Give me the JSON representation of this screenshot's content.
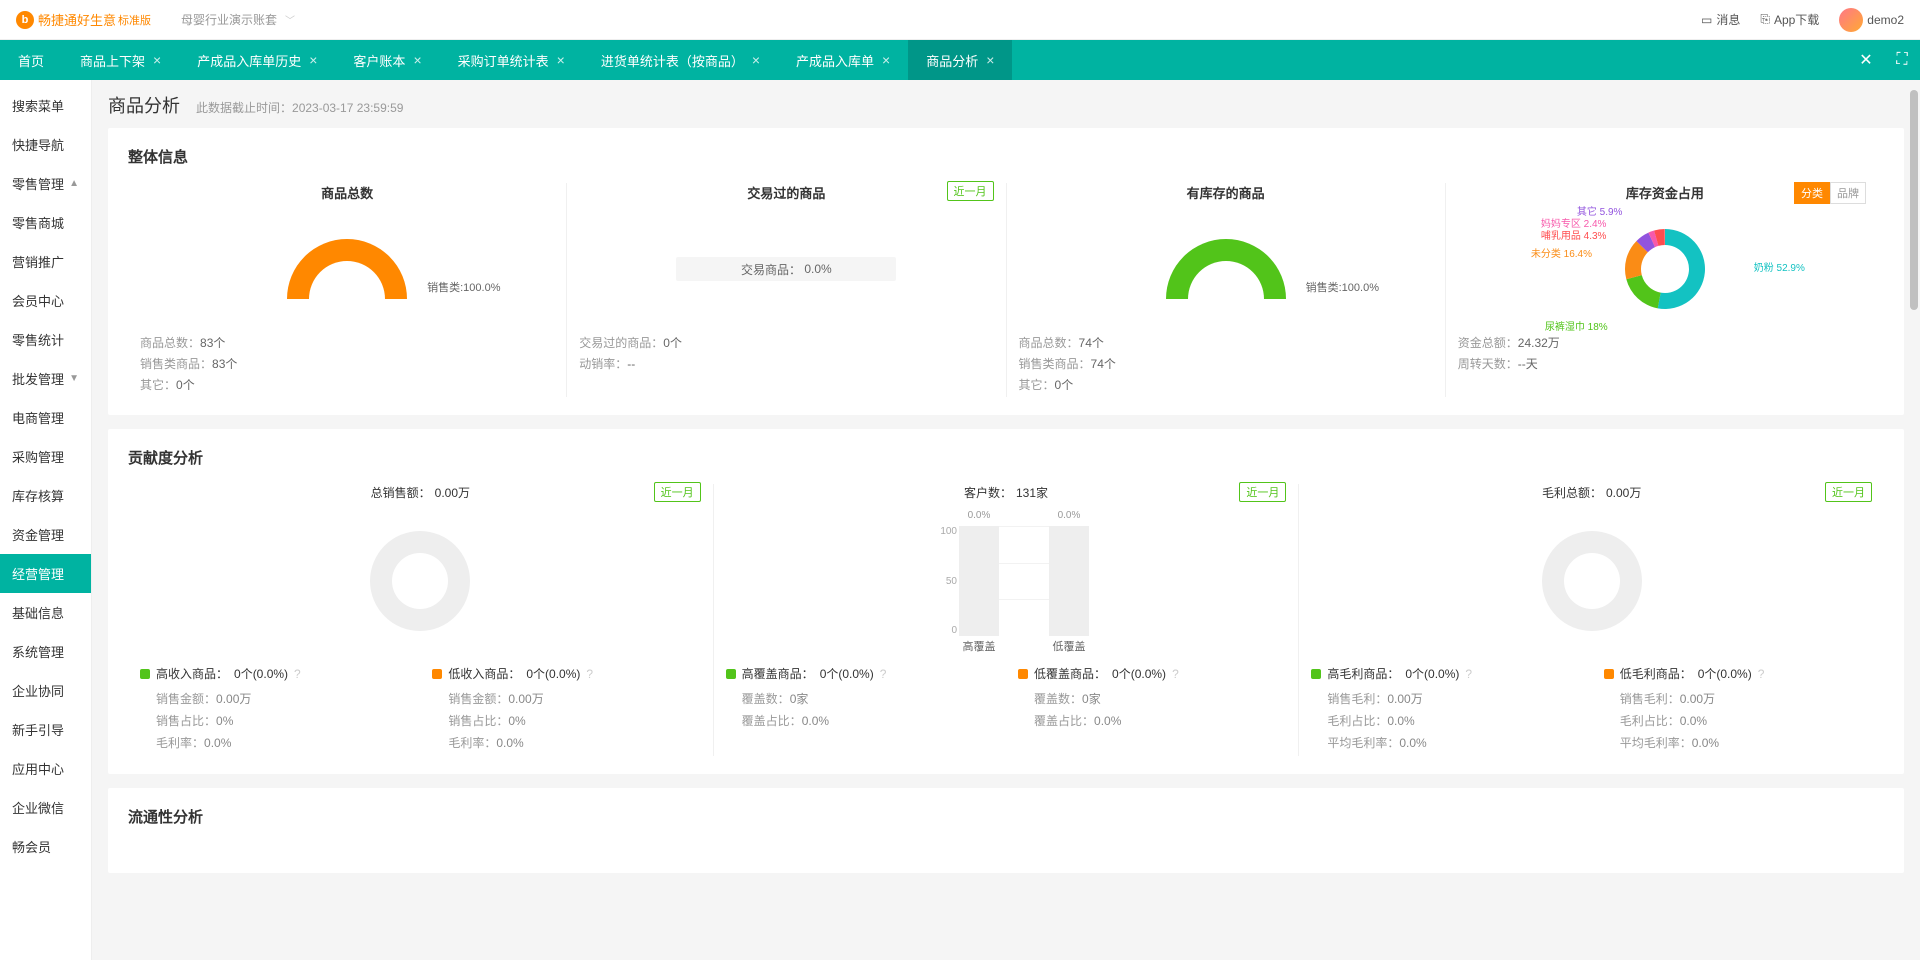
{
  "header": {
    "logo_text": "畅捷通好生意",
    "logo_sub": "标准版",
    "org_name": "母婴行业演示账套",
    "msg_label": "消息",
    "app_label": "App下载",
    "user_name": "demo2"
  },
  "tabs": [
    {
      "label": "首页",
      "closable": false
    },
    {
      "label": "商品上下架",
      "closable": true
    },
    {
      "label": "产成品入库单历史",
      "closable": true
    },
    {
      "label": "客户账本",
      "closable": true
    },
    {
      "label": "采购订单统计表",
      "closable": true
    },
    {
      "label": "进货单统计表（按商品）",
      "closable": true
    },
    {
      "label": "产成品入库单",
      "closable": true
    },
    {
      "label": "商品分析",
      "closable": true,
      "active": true
    }
  ],
  "sidebar": [
    {
      "label": "搜索菜单"
    },
    {
      "label": "快捷导航"
    },
    {
      "label": "零售管理",
      "caret": "▲"
    },
    {
      "label": "零售商城"
    },
    {
      "label": "营销推广"
    },
    {
      "label": "会员中心"
    },
    {
      "label": "零售统计"
    },
    {
      "label": "批发管理",
      "caret": "▼"
    },
    {
      "label": "电商管理"
    },
    {
      "label": "采购管理"
    },
    {
      "label": "库存核算"
    },
    {
      "label": "资金管理"
    },
    {
      "label": "经营管理",
      "active": true
    },
    {
      "label": "基础信息"
    },
    {
      "label": "系统管理"
    },
    {
      "label": "企业协同"
    },
    {
      "label": "新手引导"
    },
    {
      "label": "应用中心"
    },
    {
      "label": "企业微信"
    },
    {
      "label": "畅会员"
    }
  ],
  "page": {
    "title": "商品分析",
    "subtitle_prefix": "此数据截止时间：",
    "subtitle_time": "2023-03-17 23:59:59"
  },
  "overall": {
    "section_title": "整体信息",
    "cards": {
      "total": {
        "title": "商品总数",
        "gauge_color": "#ff8800",
        "gauge_label": "销售类:100.0%",
        "stats": [
          {
            "k": "商品总数：",
            "v": "83个"
          },
          {
            "k": "销售类商品：",
            "v": "83个"
          },
          {
            "k": "其它：",
            "v": "0个"
          }
        ]
      },
      "traded": {
        "title": "交易过的商品",
        "badge": "近一月",
        "bar_label": "交易商品：",
        "bar_value": "0.0%",
        "stats": [
          {
            "k": "交易过的商品：",
            "v": "0个"
          },
          {
            "k": "动销率：",
            "v": "--"
          }
        ]
      },
      "stock": {
        "title": "有库存的商品",
        "gauge_color": "#52c41a",
        "gauge_label": "销售类:100.0%",
        "stats": [
          {
            "k": "商品总数：",
            "v": "74个"
          },
          {
            "k": "销售类商品：",
            "v": "74个"
          },
          {
            "k": "其它：",
            "v": "0个"
          }
        ]
      },
      "capital": {
        "title": "库存资金占用",
        "toggle": {
          "on": "分类",
          "off": "品牌"
        },
        "pie": {
          "slices": [
            {
              "label": "奶粉",
              "pct": 52.9,
              "color": "#13c2c2"
            },
            {
              "label": "尿裤湿巾",
              "pct": 18.0,
              "color": "#52c41a"
            },
            {
              "label": "未分类",
              "pct": 16.4,
              "color": "#fa8c16"
            },
            {
              "label": "其它",
              "pct": 5.9,
              "color": "#9254de"
            },
            {
              "label": "妈妈专区",
              "pct": 2.4,
              "color": "#f759ab"
            },
            {
              "label": "哺乳用品",
              "pct": 4.3,
              "color": "#ff4d4f"
            }
          ]
        },
        "stats": [
          {
            "k": "资金总额：",
            "v": "24.32万"
          },
          {
            "k": "周转天数：",
            "v": "--天"
          }
        ]
      }
    }
  },
  "contribution": {
    "section_title": "贡献度分析",
    "cards": [
      {
        "title_label": "总销售额：",
        "title_value": "0.00万",
        "badge": "近一月",
        "chart_type": "donut_empty",
        "left": {
          "head": "高收入商品：",
          "head_val": "0个(0.0%)",
          "rows": [
            [
              "销售金额：",
              "0.00万"
            ],
            [
              "销售占比：",
              "0%"
            ],
            [
              "毛利率：",
              "0.0%"
            ]
          ]
        },
        "right": {
          "head": "低收入商品：",
          "head_val": "0个(0.0%)",
          "rows": [
            [
              "销售金额：",
              "0.00万"
            ],
            [
              "销售占比：",
              "0%"
            ],
            [
              "毛利率：",
              "0.0%"
            ]
          ]
        }
      },
      {
        "title_label": "客户数：",
        "title_value": "131家",
        "badge": "近一月",
        "chart_type": "bars",
        "bars": {
          "yticks": [
            "100",
            "50",
            "0"
          ],
          "cols": [
            {
              "label": "高覆盖",
              "val": "0.0%",
              "h": 100
            },
            {
              "label": "低覆盖",
              "val": "0.0%",
              "h": 100
            }
          ]
        },
        "left": {
          "head": "高覆盖商品：",
          "head_val": "0个(0.0%)",
          "rows": [
            [
              "覆盖数：",
              "0家"
            ],
            [
              "覆盖占比：",
              "0.0%"
            ]
          ]
        },
        "right": {
          "head": "低覆盖商品：",
          "head_val": "0个(0.0%)",
          "rows": [
            [
              "覆盖数：",
              "0家"
            ],
            [
              "覆盖占比：",
              "0.0%"
            ]
          ]
        }
      },
      {
        "title_label": "毛利总额：",
        "title_value": "0.00万",
        "badge": "近一月",
        "chart_type": "donut_empty",
        "left": {
          "head": "高毛利商品：",
          "head_val": "0个(0.0%)",
          "rows": [
            [
              "销售毛利：",
              "0.00万"
            ],
            [
              "毛利占比：",
              "0.0%"
            ],
            [
              "平均毛利率：",
              "0.0%"
            ]
          ]
        },
        "right": {
          "head": "低毛利商品：",
          "head_val": "0个(0.0%)",
          "rows": [
            [
              "销售毛利：",
              "0.00万"
            ],
            [
              "毛利占比：",
              "0.0%"
            ],
            [
              "平均毛利率：",
              "0.0%"
            ]
          ]
        }
      }
    ]
  },
  "liquidity": {
    "section_title": "流通性分析"
  }
}
